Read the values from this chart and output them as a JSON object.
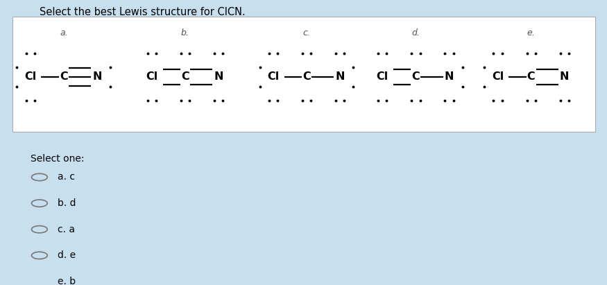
{
  "title": "Select the best Lewis structure for ClCN.",
  "bg_color": "#c8dff0",
  "box_color": "#ffffff",
  "structure_labels": [
    "a.",
    "b.",
    "c.",
    "d.",
    "e."
  ],
  "struct_centers": [
    0.105,
    0.305,
    0.505,
    0.685,
    0.875
  ],
  "select_one_text": "Select one:",
  "options": [
    "a. c",
    "b. d",
    "c. a",
    "d. e",
    "e. b"
  ]
}
